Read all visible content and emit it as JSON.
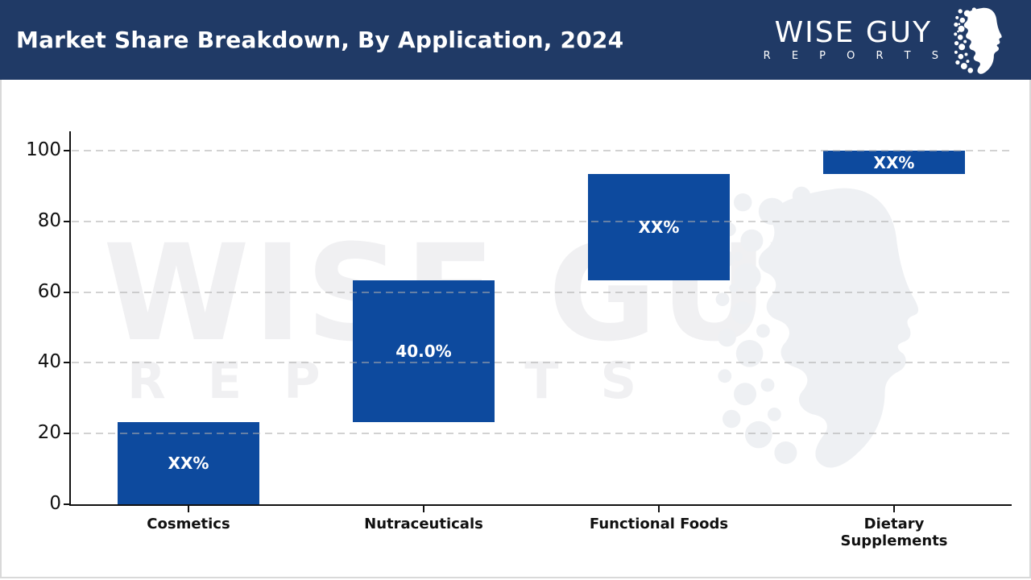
{
  "header": {
    "title": "Market Share Breakdown, By Application, 2024",
    "logo": {
      "wordmark": "WISE GUY",
      "subtitle": "R E P O R T S"
    }
  },
  "watermark": {
    "line1": "WISE GUY",
    "line2": "REPORTS"
  },
  "chart_data": {
    "type": "bar",
    "subtype": "waterfall",
    "title": "Market Share Breakdown, By Application, 2024",
    "categories": [
      "Cosmetics",
      "Nutraceuticals",
      "Functional Foods",
      "Dietary Supplements"
    ],
    "segments": [
      {
        "category": "Cosmetics",
        "start": 0,
        "end": 23.3,
        "label": "XX%"
      },
      {
        "category": "Nutraceuticals",
        "start": 23.3,
        "end": 63.3,
        "label": "40.0%"
      },
      {
        "category": "Functional Foods",
        "start": 63.3,
        "end": 93.3,
        "label": "XX%"
      },
      {
        "category": "Dietary Supplements",
        "start": 93.3,
        "end": 100,
        "label": "XX%"
      }
    ],
    "ylim": [
      0,
      100
    ],
    "yticks": [
      0,
      20,
      40,
      60,
      80,
      100
    ],
    "grid": "horizontal-dashed",
    "legend": "none",
    "bar_color": "#0d4a9e",
    "bar_label_color": "#ffffff"
  },
  "colors": {
    "header_bg": "#203a66",
    "bar": "#0d4a9e",
    "grid": "#adadad",
    "axis": "#111111",
    "watermark": "#f0f0f2",
    "border": "#d9d9d9"
  }
}
